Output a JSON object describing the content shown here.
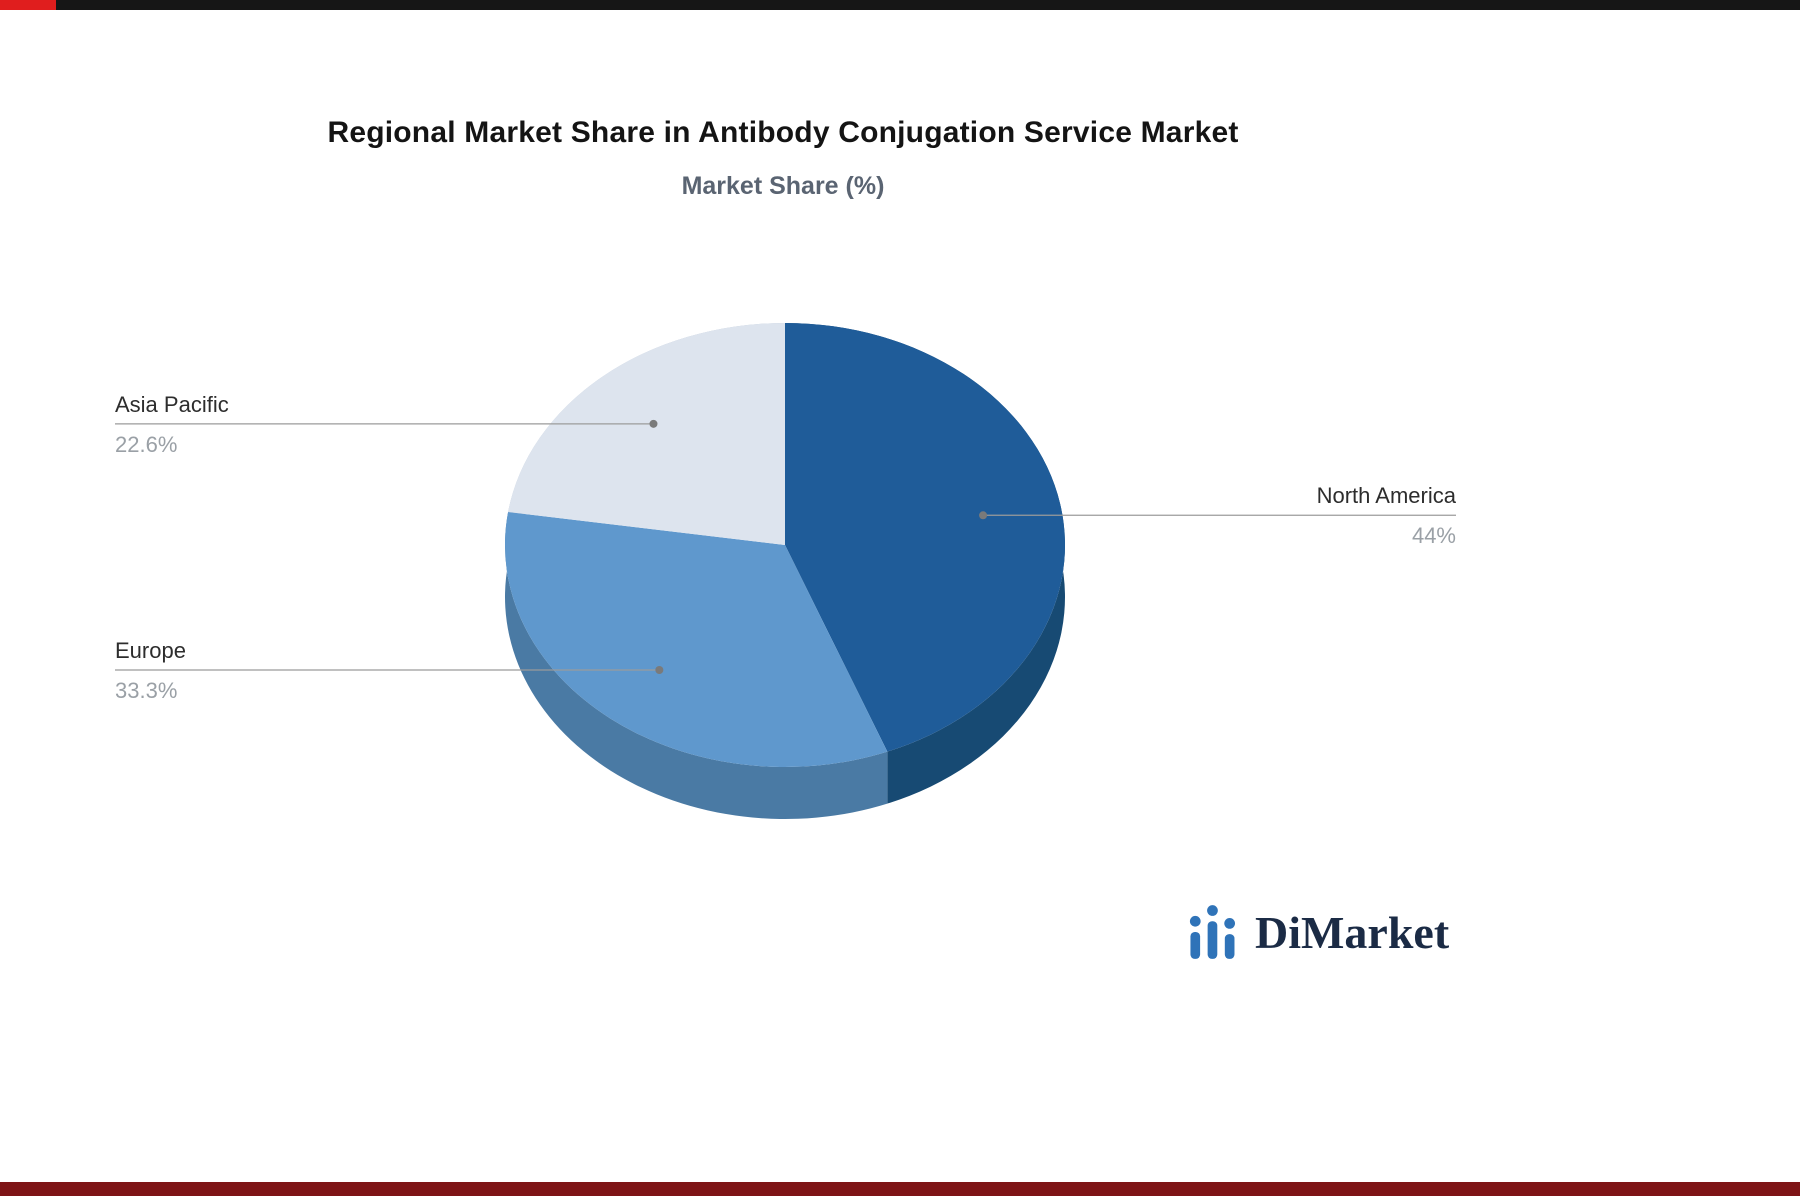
{
  "page": {
    "title": "Regional Market Share in Antibody Conjugation Service Market",
    "subtitle": "Market Share (%)"
  },
  "branding": {
    "logo_text": "DiMarket",
    "logo_icon": "bar-chart-dots-icon",
    "logo_icon_color": "#2f73b8",
    "logo_text_color": "#1b2b45"
  },
  "theme": {
    "background": "#ffffff",
    "top_strip_color": "#161616",
    "top_strip_accent": "#e01e1e",
    "bottom_strip_color": "#7e1416",
    "leader_line_color": "#9b9b9b",
    "leader_dot_color": "#7a7a7a",
    "label_name_color": "#2d2d2d",
    "label_value_color": "#9aa0a6"
  },
  "chart_data": {
    "type": "pie",
    "title": "Regional Market Share in Antibody Conjugation Service Market",
    "subtitle": "Market Share (%)",
    "unit": "%",
    "effect": "3d-depth",
    "direction": "clockwise",
    "start_angle_deg": 0,
    "legend": "none",
    "labels": "callouts-with-leader-lines",
    "slices": [
      {
        "label": "North America",
        "value": 44,
        "display": "44%",
        "color": "#1f5c99",
        "depth_color": "#174a73"
      },
      {
        "label": "Europe",
        "value": 33.3,
        "display": "33.3%",
        "color": "#5f98cd",
        "depth_color": "#4a7aa4"
      },
      {
        "label": "Asia Pacific",
        "value": 22.6,
        "display": "22.6%",
        "color": "#dde4ee",
        "depth_color": "#b6c2d2"
      }
    ]
  }
}
